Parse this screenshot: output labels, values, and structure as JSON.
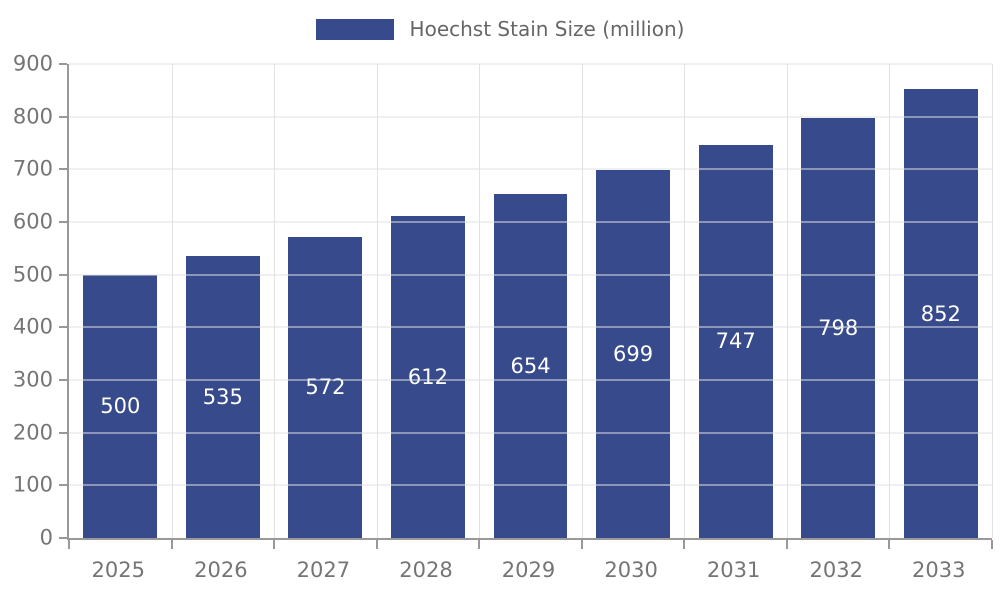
{
  "chart_data": {
    "type": "bar",
    "title": "",
    "legend": {
      "label": "Hoechst Stain Size (million)",
      "position": "top-center"
    },
    "categories": [
      "2025",
      "2026",
      "2027",
      "2028",
      "2029",
      "2030",
      "2031",
      "2032",
      "2033"
    ],
    "series": [
      {
        "name": "Hoechst Stain Size (million)",
        "values": [
          500,
          535,
          572,
          612,
          654,
          699,
          747,
          798,
          852
        ]
      }
    ],
    "data_labels": [
      "500",
      "535",
      "572",
      "612",
      "654",
      "699",
      "747",
      "798",
      "852"
    ],
    "xlabel": "",
    "ylabel": "",
    "ylim": [
      0,
      900
    ],
    "yticks": [
      0,
      100,
      200,
      300,
      400,
      500,
      600,
      700,
      800,
      900
    ],
    "grid": true,
    "colors": {
      "bar": "#374A8B",
      "bar_label": "#FFFFFF",
      "axis_text": "#757575",
      "legend_text": "#666666",
      "gridline": "#E2E2E2",
      "axis_line": "#999999",
      "background": "#FFFFFF"
    }
  }
}
